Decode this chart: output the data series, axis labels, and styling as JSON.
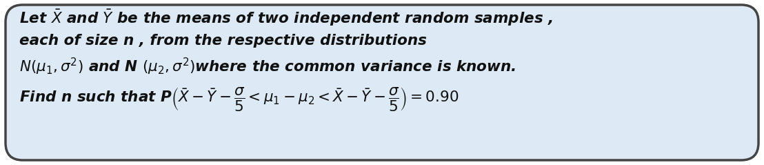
{
  "background_color": "#ddeaf5",
  "border_color": "#444444",
  "text_color": "#111111",
  "fig_width": 11.08,
  "fig_height": 2.39,
  "dpi": 100,
  "fontsize": 15.5
}
